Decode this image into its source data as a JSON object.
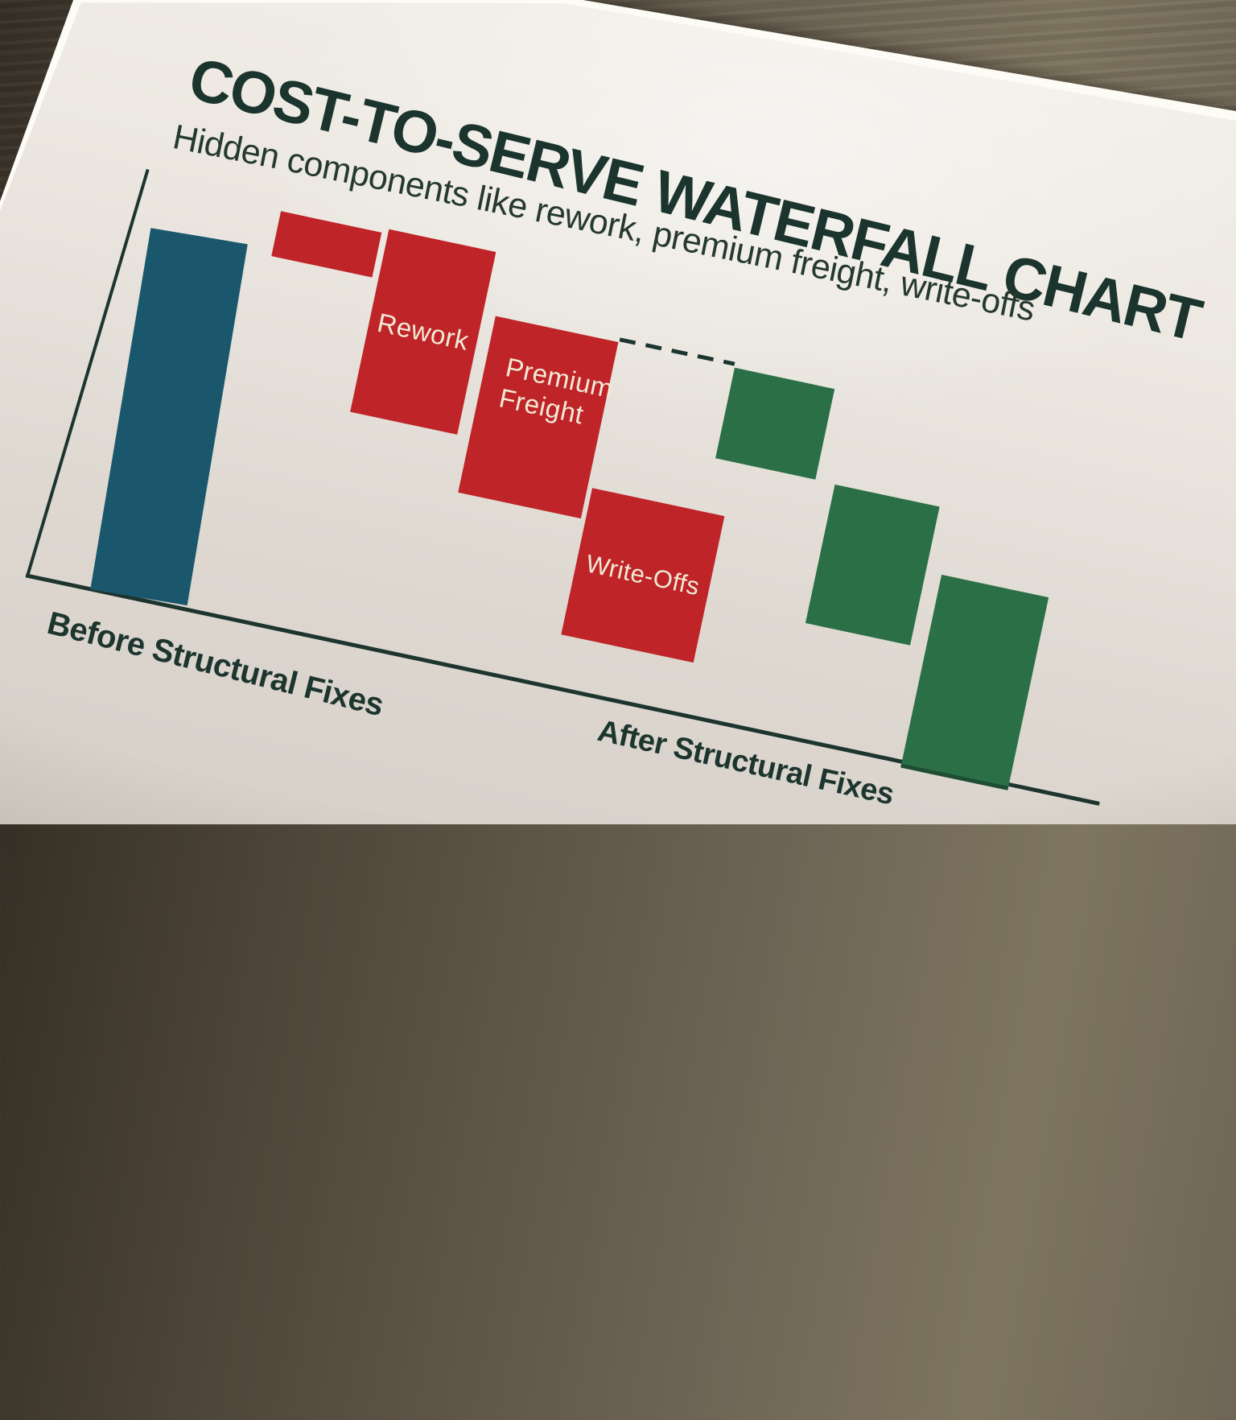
{
  "scene": {
    "description": "Photograph of a printed waterfall chart on a white sheet of paper lying at an angle on a wooden desk",
    "paper_color": "#ece8e1",
    "desk_wood_color": "#5d5446",
    "ink_color": "#1c352e"
  },
  "chart_data": {
    "type": "bar",
    "subtype": "waterfall",
    "title": "COST-TO-SERVE WATERFALL CHART",
    "subtitle": "Hidden components like rework, premium freight, write-offs",
    "xlabel": "",
    "ylabel": "",
    "x_axis_labels": [
      "Before Structural Fixes",
      "After Structural Fixes"
    ],
    "value_axis": {
      "tick_labels_visible": false,
      "units": "relative 0-100 (baseline = 0, total bar top = 100)"
    },
    "grid": false,
    "legend": null,
    "colors": {
      "total": "#1a576d",
      "decrease": "#bf2428",
      "remaining": "#2b6f47",
      "axis": "#1c352e",
      "bar_text": "#f2ead6"
    },
    "bars": [
      {
        "name": "Before Structural Fixes (total)",
        "role": "total",
        "color": "#1a576d",
        "from": 0,
        "to": 100,
        "label": ""
      },
      {
        "name": "Unlabeled decrement",
        "role": "decrease",
        "color": "#bf2428",
        "from": 99,
        "to": 112,
        "label": ""
      },
      {
        "name": "Rework",
        "role": "decrease",
        "color": "#bf2428",
        "from": 62,
        "to": 113,
        "label": "Rework"
      },
      {
        "name": "Premium Freight",
        "role": "decrease",
        "color": "#bf2428",
        "from": 46,
        "to": 95,
        "label": "Premium\nFreight"
      },
      {
        "name": "Write-Offs",
        "role": "decrease",
        "color": "#bf2428",
        "from": 14,
        "to": 55,
        "label": "Write-Offs"
      },
      {
        "name": "Remaining step 1",
        "role": "remaining",
        "color": "#2b6f47",
        "from": 70,
        "to": 95,
        "label": ""
      },
      {
        "name": "Remaining step 2",
        "role": "remaining",
        "color": "#2b6f47",
        "from": 31,
        "to": 70,
        "label": ""
      },
      {
        "name": "After Structural Fixes (remaining)",
        "role": "remaining",
        "color": "#2b6f47",
        "from": -2,
        "to": 52,
        "label": ""
      }
    ],
    "connector": {
      "style": "dashed",
      "color": "#1c352e",
      "between": [
        "Premium Freight",
        "Remaining step 1"
      ]
    }
  },
  "labels": {
    "before": "Before Structural Fixes",
    "after": "After Structural Fixes"
  }
}
